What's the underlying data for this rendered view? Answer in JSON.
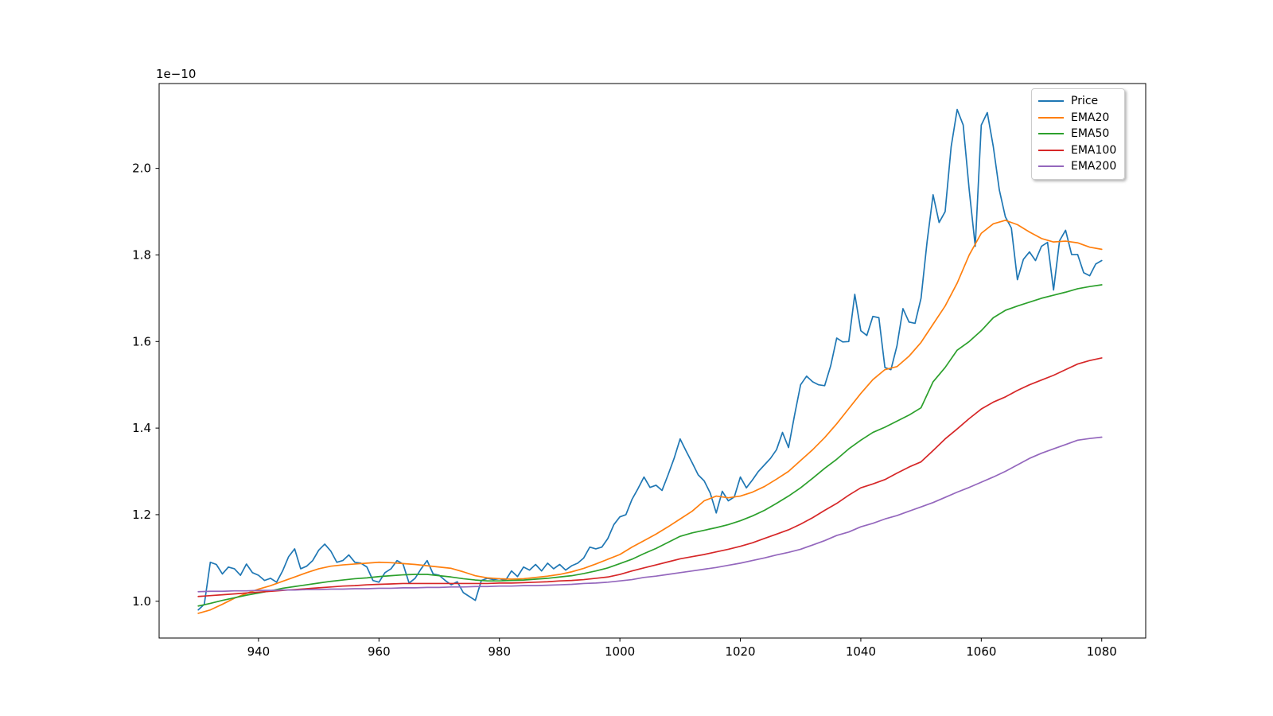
{
  "chart_data": {
    "type": "line",
    "title": "",
    "xlabel": "",
    "ylabel": "",
    "y_offset_label": "1e−10",
    "values_unit": "1e-10",
    "grid": false,
    "legend_position": "upper right",
    "xlim": [
      923.5,
      1087.3
    ],
    "ylim": [
      0.915,
      2.196
    ],
    "x_ticks": {
      "values": [
        940,
        960,
        980,
        1000,
        1020,
        1040,
        1060,
        1080
      ],
      "labels": [
        "940",
        "960",
        "980",
        "1000",
        "1020",
        "1040",
        "1060",
        "1080"
      ]
    },
    "y_ticks": {
      "values": [
        1.0,
        1.2,
        1.4,
        1.6,
        1.8,
        2.0
      ],
      "labels": [
        "1.0",
        "1.2",
        "1.4",
        "1.6",
        "1.8",
        "2.0"
      ]
    },
    "series": [
      {
        "name": "Price",
        "color": "#1f77b4",
        "x_start": 930,
        "x_step": 1,
        "values": [
          0.98,
          0.993,
          1.09,
          1.085,
          1.063,
          1.079,
          1.075,
          1.06,
          1.086,
          1.066,
          1.06,
          1.048,
          1.053,
          1.044,
          1.07,
          1.103,
          1.121,
          1.075,
          1.081,
          1.094,
          1.118,
          1.132,
          1.116,
          1.09,
          1.094,
          1.107,
          1.09,
          1.088,
          1.079,
          1.048,
          1.044,
          1.066,
          1.075,
          1.094,
          1.086,
          1.042,
          1.053,
          1.075,
          1.094,
          1.063,
          1.06,
          1.048,
          1.038,
          1.045,
          1.02,
          1.011,
          1.002,
          1.048,
          1.053,
          1.05,
          1.052,
          1.048,
          1.07,
          1.057,
          1.079,
          1.072,
          1.085,
          1.07,
          1.088,
          1.075,
          1.085,
          1.072,
          1.082,
          1.088,
          1.1,
          1.125,
          1.121,
          1.125,
          1.145,
          1.177,
          1.195,
          1.2,
          1.235,
          1.26,
          1.287,
          1.263,
          1.268,
          1.256,
          1.292,
          1.33,
          1.375,
          1.347,
          1.32,
          1.292,
          1.278,
          1.25,
          1.204,
          1.254,
          1.232,
          1.241,
          1.287,
          1.262,
          1.28,
          1.3,
          1.315,
          1.33,
          1.35,
          1.39,
          1.355,
          1.43,
          1.5,
          1.52,
          1.507,
          1.5,
          1.498,
          1.544,
          1.608,
          1.599,
          1.6,
          1.709,
          1.625,
          1.614,
          1.658,
          1.655,
          1.54,
          1.535,
          1.59,
          1.676,
          1.645,
          1.642,
          1.7,
          1.83,
          1.939,
          1.875,
          1.9,
          2.05,
          2.136,
          2.1,
          1.95,
          1.82,
          2.1,
          2.129,
          2.05,
          1.95,
          1.888,
          1.862,
          1.743,
          1.79,
          1.807,
          1.787,
          1.82,
          1.829,
          1.719,
          1.833,
          1.857,
          1.801,
          1.801,
          1.759,
          1.752,
          1.779,
          1.787
        ]
      },
      {
        "name": "EMA20",
        "color": "#ff7f0e",
        "x_start": 930,
        "x_step": 2,
        "values": [
          0.972,
          0.98,
          0.993,
          1.007,
          1.018,
          1.028,
          1.036,
          1.046,
          1.056,
          1.066,
          1.075,
          1.081,
          1.084,
          1.086,
          1.088,
          1.09,
          1.089,
          1.087,
          1.085,
          1.082,
          1.079,
          1.076,
          1.068,
          1.059,
          1.054,
          1.052,
          1.051,
          1.052,
          1.055,
          1.058,
          1.062,
          1.068,
          1.076,
          1.086,
          1.097,
          1.108,
          1.125,
          1.14,
          1.155,
          1.172,
          1.19,
          1.208,
          1.232,
          1.243,
          1.239,
          1.243,
          1.252,
          1.265,
          1.282,
          1.3,
          1.325,
          1.35,
          1.378,
          1.41,
          1.445,
          1.48,
          1.512,
          1.535,
          1.542,
          1.566,
          1.598,
          1.64,
          1.682,
          1.735,
          1.8,
          1.85,
          1.872,
          1.88,
          1.87,
          1.853,
          1.838,
          1.83,
          1.832,
          1.828,
          1.818,
          1.813
        ]
      },
      {
        "name": "EMA50",
        "color": "#2ca02c",
        "x_start": 930,
        "x_step": 2,
        "values": [
          0.989,
          0.995,
          1.002,
          1.008,
          1.014,
          1.019,
          1.024,
          1.03,
          1.034,
          1.038,
          1.042,
          1.046,
          1.049,
          1.052,
          1.054,
          1.057,
          1.059,
          1.061,
          1.062,
          1.062,
          1.059,
          1.056,
          1.052,
          1.049,
          1.047,
          1.047,
          1.048,
          1.049,
          1.051,
          1.053,
          1.056,
          1.059,
          1.064,
          1.07,
          1.077,
          1.087,
          1.097,
          1.11,
          1.122,
          1.136,
          1.15,
          1.158,
          1.164,
          1.17,
          1.177,
          1.186,
          1.197,
          1.21,
          1.226,
          1.243,
          1.262,
          1.284,
          1.307,
          1.328,
          1.352,
          1.372,
          1.39,
          1.402,
          1.416,
          1.43,
          1.447,
          1.507,
          1.54,
          1.58,
          1.6,
          1.625,
          1.655,
          1.672,
          1.682,
          1.691,
          1.7,
          1.707,
          1.714,
          1.722,
          1.727,
          1.731
        ]
      },
      {
        "name": "EMA100",
        "color": "#d62728",
        "x_start": 930,
        "x_step": 2,
        "values": [
          1.011,
          1.013,
          1.015,
          1.017,
          1.019,
          1.021,
          1.023,
          1.025,
          1.027,
          1.029,
          1.031,
          1.033,
          1.035,
          1.036,
          1.038,
          1.039,
          1.04,
          1.041,
          1.041,
          1.041,
          1.041,
          1.041,
          1.041,
          1.041,
          1.041,
          1.042,
          1.042,
          1.043,
          1.044,
          1.045,
          1.047,
          1.048,
          1.05,
          1.053,
          1.056,
          1.062,
          1.07,
          1.077,
          1.084,
          1.091,
          1.098,
          1.103,
          1.108,
          1.114,
          1.12,
          1.127,
          1.135,
          1.145,
          1.155,
          1.165,
          1.178,
          1.193,
          1.21,
          1.226,
          1.245,
          1.262,
          1.271,
          1.281,
          1.296,
          1.31,
          1.322,
          1.348,
          1.375,
          1.398,
          1.422,
          1.444,
          1.46,
          1.472,
          1.487,
          1.5,
          1.511,
          1.522,
          1.535,
          1.548,
          1.556,
          1.562
        ]
      },
      {
        "name": "EMA200",
        "color": "#9467bd",
        "x_start": 930,
        "x_step": 2,
        "values": [
          1.022,
          1.023,
          1.023,
          1.024,
          1.024,
          1.025,
          1.025,
          1.026,
          1.026,
          1.027,
          1.027,
          1.028,
          1.028,
          1.029,
          1.029,
          1.03,
          1.03,
          1.031,
          1.031,
          1.032,
          1.032,
          1.033,
          1.033,
          1.034,
          1.034,
          1.035,
          1.035,
          1.036,
          1.036,
          1.037,
          1.038,
          1.039,
          1.041,
          1.042,
          1.044,
          1.047,
          1.05,
          1.055,
          1.058,
          1.062,
          1.066,
          1.07,
          1.074,
          1.078,
          1.083,
          1.088,
          1.094,
          1.1,
          1.107,
          1.113,
          1.12,
          1.13,
          1.14,
          1.152,
          1.16,
          1.172,
          1.18,
          1.19,
          1.198,
          1.208,
          1.218,
          1.228,
          1.24,
          1.252,
          1.263,
          1.275,
          1.287,
          1.3,
          1.315,
          1.33,
          1.342,
          1.352,
          1.362,
          1.372,
          1.376,
          1.379
        ]
      }
    ]
  }
}
